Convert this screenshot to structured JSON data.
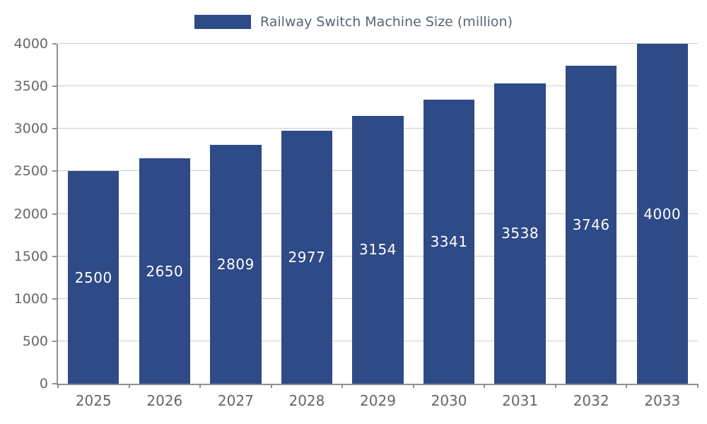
{
  "chart_data": {
    "type": "bar",
    "title": "Railway Switch Machine Size (million)",
    "categories": [
      "2025",
      "2026",
      "2027",
      "2028",
      "2029",
      "2030",
      "2031",
      "2032",
      "2033"
    ],
    "values": [
      2500,
      2650,
      2809,
      2977,
      3154,
      3341,
      3538,
      3746,
      4000
    ],
    "xlabel": "",
    "ylabel": "",
    "ylim": [
      0,
      4000
    ],
    "yticks": [
      0,
      500,
      1000,
      1500,
      2000,
      2500,
      3000,
      3500,
      4000
    ],
    "grid": true,
    "legend_position": "top",
    "bar_labels_inside": true
  },
  "legend": {
    "label": "Railway Switch Machine Size (million)"
  },
  "colors": {
    "bar": "#2e4a87",
    "grid": "#cccccc",
    "axis": "#8f8f8f",
    "tick_text": "#666666",
    "legend_text": "#5a6472",
    "bar_label": "#ffffff"
  }
}
